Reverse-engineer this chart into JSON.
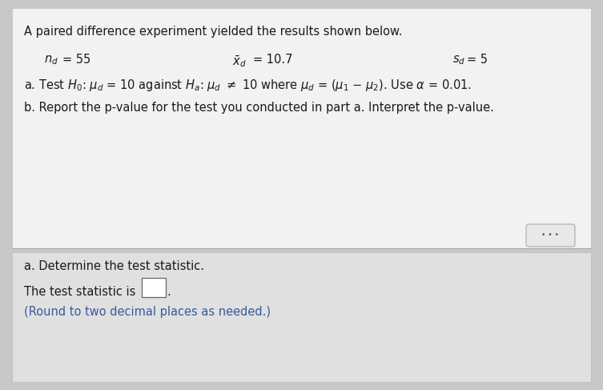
{
  "bg_color": "#c8c8c8",
  "top_panel_color": "#f2f2f2",
  "bottom_panel_color": "#e0e0e0",
  "title_text": "A paired difference experiment yielded the results shown below.",
  "line_a": "a. Test H₀: μ₉ = 10 against Hₐ: μ₉ ≠ 10 where μ₉ = (μ₁ − μ₂). Use α = 0.01.",
  "line_b": "b. Report the p-value for the test you conducted in part a. Interpret the p-value.",
  "answer_header": "a. Determine the test statistic.",
  "answer_line1": "The test statistic is",
  "answer_line2": "(Round to two decimal places as needed.)",
  "text_color": "#1a1a1a",
  "link_color": "#3a5a9a",
  "separator_color": "#aaaaaa",
  "font_size_body": 10.5
}
